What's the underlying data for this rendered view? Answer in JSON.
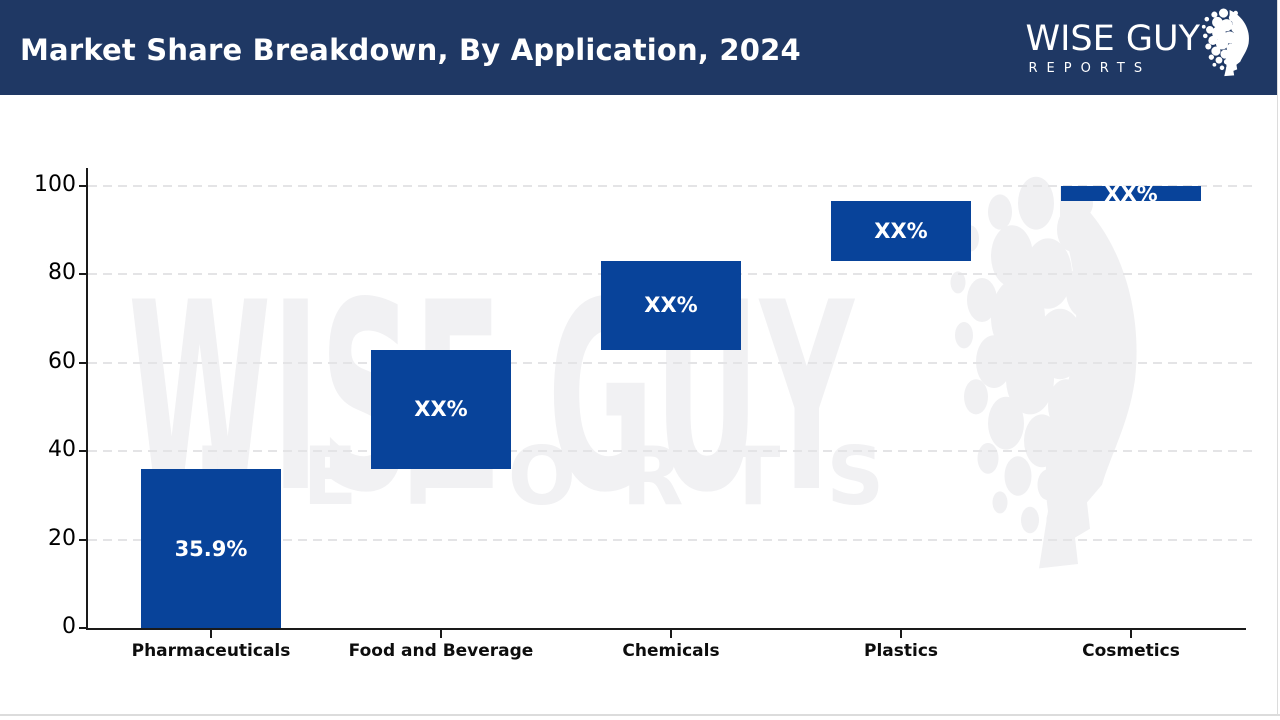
{
  "header": {
    "title": "Market Share Breakdown, By Application, 2024",
    "bg_color": "#1f3864",
    "logo": {
      "line1": "WISE GUY",
      "line2": "REPORTS"
    }
  },
  "watermark": {
    "line1": "WISE GUY",
    "line2": "REPORTS"
  },
  "chart_data": {
    "type": "bar",
    "subtype": "waterfall",
    "title": "Market Share Breakdown, By Application, 2024",
    "categories": [
      "Pharmaceuticals",
      "Food and Beverage",
      "Chemicals",
      "Plastics",
      "Cosmetics"
    ],
    "segments": [
      {
        "category": "Pharmaceuticals",
        "start": 0,
        "end": 35.9,
        "label": "35.9%"
      },
      {
        "category": "Food and Beverage",
        "start": 35.9,
        "end": 63.0,
        "label": "XX%"
      },
      {
        "category": "Chemicals",
        "start": 63.0,
        "end": 83.0,
        "label": "XX%"
      },
      {
        "category": "Plastics",
        "start": 83.0,
        "end": 96.5,
        "label": "XX%"
      },
      {
        "category": "Cosmetics",
        "start": 96.5,
        "end": 100.0,
        "label": "XX%"
      }
    ],
    "yticks": [
      0,
      20,
      40,
      60,
      80,
      100
    ],
    "ylim": [
      0,
      104
    ],
    "xlabel": "",
    "ylabel": "",
    "grid": "horizontal-dashed",
    "legend": "none",
    "bar_color": "#08439a",
    "bar_label_color": "#ffffff"
  }
}
